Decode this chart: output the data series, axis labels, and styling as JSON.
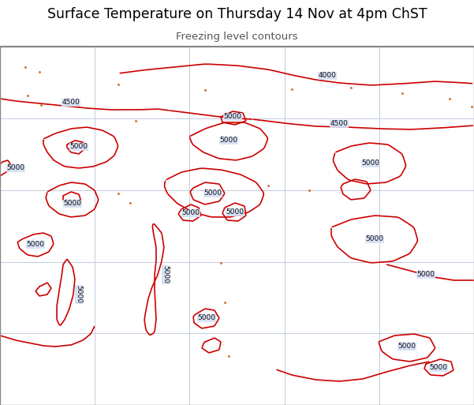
{
  "title": "Surface Temperature on Thursday 14 Nov at 4pm ChST",
  "subtitle": "Freezing level contours",
  "map_bg": "#d4dff5",
  "border_color": "#888888",
  "contour_color": "#cc0000",
  "label_color": "#111111",
  "grid_color": "#b8c4d8",
  "title_fontsize": 12.5,
  "subtitle_fontsize": 9.5,
  "label_fontsize": 6.5,
  "figsize": [
    6.01,
    5.13
  ],
  "dpi": 100
}
